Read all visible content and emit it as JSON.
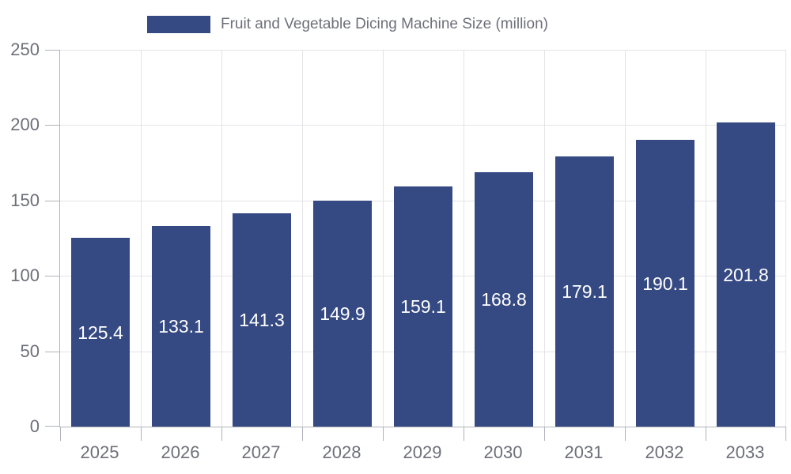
{
  "chart_data": {
    "type": "bar",
    "title": "Fruit and Vegetable Dicing Machine Size (million)",
    "legend": {
      "label": "Fruit and Vegetable Dicing Machine Size (million)",
      "position": "top"
    },
    "categories": [
      "2025",
      "2026",
      "2027",
      "2028",
      "2029",
      "2030",
      "2031",
      "2032",
      "2033"
    ],
    "series": [
      {
        "name": "Fruit and Vegetable Dicing Machine Size (million)",
        "values": [
          125.4,
          133.1,
          141.3,
          149.9,
          159.1,
          168.8,
          179.1,
          190.1,
          201.8
        ]
      }
    ],
    "xlabel": "",
    "ylabel": "",
    "ylim": [
      0,
      250
    ],
    "yticks": [
      0,
      50,
      100,
      150,
      200,
      250
    ],
    "grid": true,
    "value_labels": "inside-center",
    "colors": {
      "bar": "#354983",
      "bar_label": "#ffffff",
      "axis_text": "#6E7079",
      "axis_line": "#b0b3b8",
      "grid_line": "#e4e4e8",
      "background": "#ffffff"
    }
  }
}
